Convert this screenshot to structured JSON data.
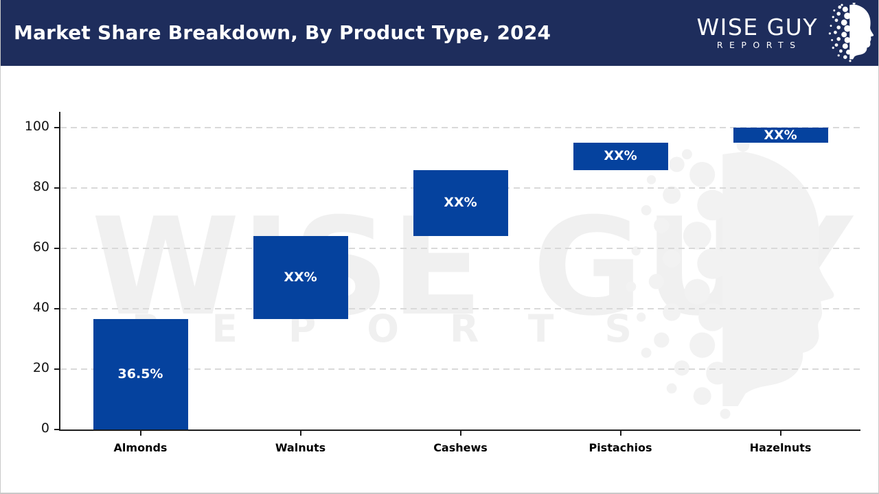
{
  "header": {
    "title": "Market Share Breakdown, By Product Type, 2024",
    "logo": {
      "primary": "WISE GUY",
      "secondary": "REPORTS"
    }
  },
  "watermark": {
    "primary": "WISE GUY",
    "secondary": "REPORTS"
  },
  "chart_data": {
    "type": "bar",
    "subtype": "waterfall-stacked-percentage",
    "title": "Market Share Breakdown, By Product Type, 2024",
    "categories": [
      "Almonds",
      "Walnuts",
      "Cashews",
      "Pistachios",
      "Hazelnuts"
    ],
    "series": [
      {
        "name": "Almonds",
        "start": 0,
        "end": 36.5,
        "label": "36.5%"
      },
      {
        "name": "Walnuts",
        "start": 36.5,
        "end": 64,
        "label": "XX%"
      },
      {
        "name": "Cashews",
        "start": 64,
        "end": 86,
        "label": "XX%"
      },
      {
        "name": "Pistachios",
        "start": 86,
        "end": 95,
        "label": "XX%"
      },
      {
        "name": "Hazelnuts",
        "start": 95,
        "end": 100,
        "label": "XX%"
      }
    ],
    "xlabel": "",
    "ylabel": "",
    "ylim": [
      0,
      100
    ],
    "yticks": [
      0,
      20,
      40,
      60,
      80,
      100
    ],
    "grid": "horizontal-dashed",
    "legend": "none"
  },
  "colors": {
    "header_bg": "#1e2d5c",
    "header_text": "#ffffff",
    "bar": "#05429e",
    "bar_label": "#ffffff",
    "axis": "#1c1c1c",
    "tick_label": "#141414",
    "gridline": "#d9d9d9",
    "watermark": "#f0f0f0",
    "frame_border": "#c9c9c9",
    "background": "#ffffff"
  }
}
